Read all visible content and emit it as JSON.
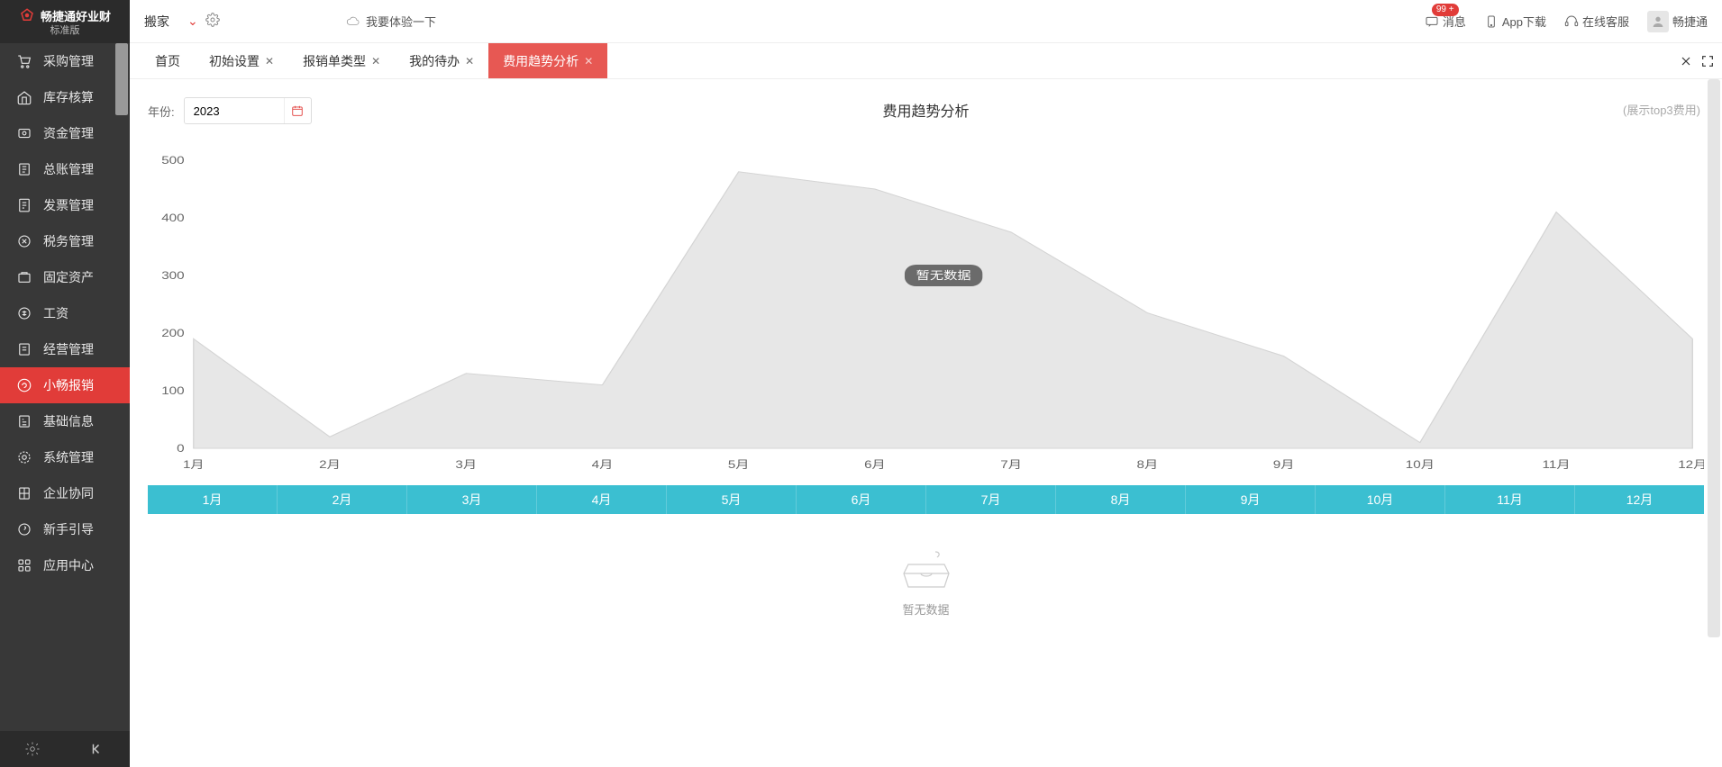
{
  "brand": {
    "name": "畅捷通好业财",
    "edition": "标准版"
  },
  "sidebar": {
    "items": [
      {
        "label": "采购管理",
        "icon": "cart"
      },
      {
        "label": "库存核算",
        "icon": "house"
      },
      {
        "label": "资金管理",
        "icon": "coin"
      },
      {
        "label": "总账管理",
        "icon": "ledger"
      },
      {
        "label": "发票管理",
        "icon": "invoice"
      },
      {
        "label": "税务管理",
        "icon": "tax"
      },
      {
        "label": "固定资产",
        "icon": "asset"
      },
      {
        "label": "工资",
        "icon": "salary"
      },
      {
        "label": "经营管理",
        "icon": "biz"
      },
      {
        "label": "小畅报销",
        "icon": "reimburse",
        "active": true
      },
      {
        "label": "基础信息",
        "icon": "info"
      },
      {
        "label": "系统管理",
        "icon": "system"
      },
      {
        "label": "企业协同",
        "icon": "collab"
      },
      {
        "label": "新手引导",
        "icon": "guide"
      },
      {
        "label": "应用中心",
        "icon": "apps"
      }
    ]
  },
  "header": {
    "context": "搬家",
    "try_label": "我要体验一下",
    "message_label": "消息",
    "message_badge": "99 +",
    "app_label": "App下载",
    "service_label": "在线客服",
    "user_name": "畅捷通"
  },
  "tabs": [
    {
      "label": "首页",
      "closable": false
    },
    {
      "label": "初始设置",
      "closable": true
    },
    {
      "label": "报销单类型",
      "closable": true
    },
    {
      "label": "我的待办",
      "closable": true
    },
    {
      "label": "费用趋势分析",
      "closable": true,
      "active": true
    }
  ],
  "content": {
    "year_label": "年份:",
    "year_value": "2023",
    "chart_title": "费用趋势分析",
    "chart_note": "(展示top3费用)",
    "tooltip_text": "暂无数据",
    "empty_text": "暂无数据",
    "months": [
      "1月",
      "2月",
      "3月",
      "4月",
      "5月",
      "6月",
      "7月",
      "8月",
      "9月",
      "10月",
      "11月",
      "12月"
    ],
    "chart": {
      "type": "area",
      "x_categories": [
        "1月",
        "2月",
        "3月",
        "4月",
        "5月",
        "6月",
        "7月",
        "8月",
        "9月",
        "10月",
        "11月",
        "12月"
      ],
      "values": [
        190,
        20,
        130,
        110,
        480,
        450,
        375,
        235,
        160,
        10,
        410,
        190
      ],
      "ylim": [
        0,
        500
      ],
      "ytick_step": 100,
      "area_fill": "#e7e7e7",
      "area_stroke": "#d4d4d4",
      "grid_color": "#eeeeee",
      "axis_label_color": "#666666",
      "background_color": "#ffffff",
      "tooltip_bg": "#6b6b6b",
      "tooltip_text_color": "#ffffff",
      "month_strip_bg": "#3bbfd1",
      "month_strip_text": "#ffffff",
      "label_fontsize": 12,
      "title_fontsize": 16
    }
  }
}
